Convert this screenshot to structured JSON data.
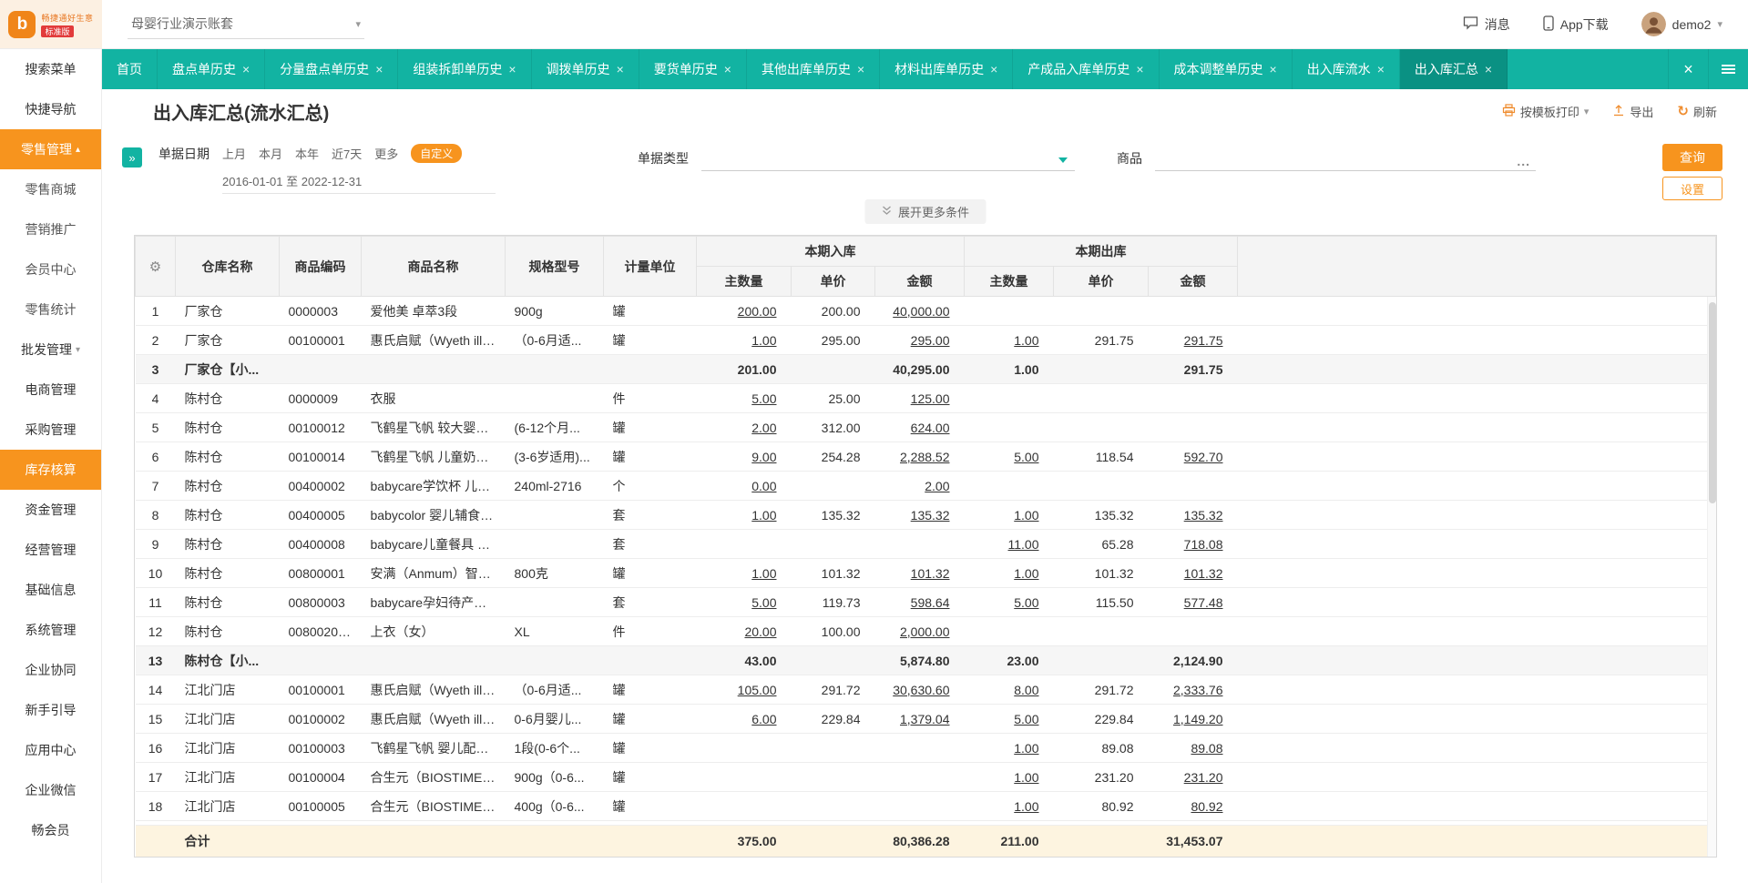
{
  "colors": {
    "brand_teal": "#12B3A2",
    "brand_teal_dark": "#0A9183",
    "accent_orange": "#F7941E",
    "subtotal_row_bg": "#F6F6F6",
    "total_row_bg": "#FDF4E0"
  },
  "topbar": {
    "logo_title": "畅捷通好生意",
    "logo_badge": "标准版",
    "account": "母婴行业演示账套",
    "messages_label": "消息",
    "app_download_label": "App下载",
    "username": "demo2"
  },
  "tabbar": {
    "tabs": [
      {
        "label": "首页",
        "closable": false,
        "active": false
      },
      {
        "label": "盘点单历史",
        "closable": true,
        "active": false
      },
      {
        "label": "分量盘点单历史",
        "closable": true,
        "active": false
      },
      {
        "label": "组装拆卸单历史",
        "closable": true,
        "active": false
      },
      {
        "label": "调拨单历史",
        "closable": true,
        "active": false
      },
      {
        "label": "要货单历史",
        "closable": true,
        "active": false
      },
      {
        "label": "其他出库单历史",
        "closable": true,
        "active": false
      },
      {
        "label": "材料出库单历史",
        "closable": true,
        "active": false
      },
      {
        "label": "产成品入库单历史",
        "closable": true,
        "active": false
      },
      {
        "label": "成本调整单历史",
        "closable": true,
        "active": false
      },
      {
        "label": "出入库流水",
        "closable": true,
        "active": false
      },
      {
        "label": "出入库汇总",
        "closable": true,
        "active": true
      }
    ]
  },
  "sidebar": {
    "items": [
      {
        "label": "搜索菜单",
        "style": "plain"
      },
      {
        "label": "快捷导航",
        "style": "plain"
      },
      {
        "label": "零售管理",
        "style": "orange",
        "arrow": "up"
      },
      {
        "label": "零售商城",
        "style": "child"
      },
      {
        "label": "营销推广",
        "style": "child"
      },
      {
        "label": "会员中心",
        "style": "child"
      },
      {
        "label": "零售统计",
        "style": "child"
      },
      {
        "label": "批发管理",
        "style": "plain",
        "arrow": "down"
      },
      {
        "label": "电商管理",
        "style": "plain"
      },
      {
        "label": "采购管理",
        "style": "plain"
      },
      {
        "label": "库存核算",
        "style": "orange"
      },
      {
        "label": "资金管理",
        "style": "plain"
      },
      {
        "label": "经营管理",
        "style": "plain"
      },
      {
        "label": "基础信息",
        "style": "plain"
      },
      {
        "label": "系统管理",
        "style": "plain"
      },
      {
        "label": "企业协同",
        "style": "plain"
      },
      {
        "label": "新手引导",
        "style": "plain"
      },
      {
        "label": "应用中心",
        "style": "plain"
      },
      {
        "label": "企业微信",
        "style": "plain"
      },
      {
        "label": "畅会员",
        "style": "plain"
      }
    ]
  },
  "page": {
    "title": "出入库汇总(流水汇总)",
    "actions": {
      "print": "按模板打印",
      "export": "导出",
      "refresh": "刷新"
    }
  },
  "filters": {
    "date_label": "单据日期",
    "date_quick": [
      "上月",
      "本月",
      "本年",
      "近7天",
      "更多"
    ],
    "date_custom": "自定义",
    "date_range": "2016-01-01 至 2022-12-31",
    "doc_type_label": "单据类型",
    "product_label": "商品",
    "product_picker": "...",
    "query": "查询",
    "settings": "设置",
    "expand_more": "展开更多条件"
  },
  "table": {
    "col_headers": {
      "warehouse": "仓库名称",
      "code": "商品编码",
      "name": "商品名称",
      "spec": "规格型号",
      "unit": "计量单位",
      "in_group": "本期入库",
      "out_group": "本期出库",
      "qty": "主数量",
      "price": "单价",
      "amount": "金额"
    },
    "rows": [
      {
        "idx": "1",
        "warehouse": "厂家仓",
        "code": "0000003",
        "name": "爱他美 卓萃3段",
        "spec": "900g",
        "unit": "罐",
        "in_qty": "200.00",
        "in_price": "200.00",
        "in_amt": "40,000.00",
        "out_qty": "",
        "out_price": "",
        "out_amt": "",
        "kind": "data"
      },
      {
        "idx": "2",
        "warehouse": "厂家仓",
        "code": "00100001",
        "name": "惠氏启赋（Wyeth illu...",
        "spec": "（0-6月适...",
        "unit": "罐",
        "in_qty": "1.00",
        "in_price": "295.00",
        "in_amt": "295.00",
        "out_qty": "1.00",
        "out_price": "291.75",
        "out_amt": "291.75",
        "kind": "data"
      },
      {
        "idx": "3",
        "warehouse": "厂家仓【小...",
        "code": "",
        "name": "",
        "spec": "",
        "unit": "",
        "in_qty": "201.00",
        "in_price": "",
        "in_amt": "40,295.00",
        "out_qty": "1.00",
        "out_price": "",
        "out_amt": "291.75",
        "kind": "subtotal"
      },
      {
        "idx": "4",
        "warehouse": "陈村仓",
        "code": "0000009",
        "name": "衣服",
        "spec": "",
        "unit": "件",
        "in_qty": "5.00",
        "in_price": "25.00",
        "in_amt": "125.00",
        "out_qty": "",
        "out_price": "",
        "out_amt": "",
        "kind": "data"
      },
      {
        "idx": "5",
        "warehouse": "陈村仓",
        "code": "00100012",
        "name": "飞鹤星飞帆 较大婴儿配...",
        "spec": "(6-12个月...",
        "unit": "罐",
        "in_qty": "2.00",
        "in_price": "312.00",
        "in_amt": "624.00",
        "out_qty": "",
        "out_price": "",
        "out_amt": "",
        "kind": "data"
      },
      {
        "idx": "6",
        "warehouse": "陈村仓",
        "code": "00100014",
        "name": "飞鹤星飞帆 儿童奶粉 4...",
        "spec": "(3-6岁适用)...",
        "unit": "罐",
        "in_qty": "9.00",
        "in_price": "254.28",
        "in_amt": "2,288.52",
        "out_qty": "5.00",
        "out_price": "118.54",
        "out_amt": "592.70",
        "kind": "data"
      },
      {
        "idx": "7",
        "warehouse": "陈村仓",
        "code": "00400002",
        "name": "babycare学饮杯 儿童...",
        "spec": "240ml-2716",
        "unit": "个",
        "in_qty": "0.00",
        "in_price": "",
        "in_amt": "2.00",
        "out_qty": "",
        "out_price": "",
        "out_amt": "",
        "kind": "data"
      },
      {
        "idx": "8",
        "warehouse": "陈村仓",
        "code": "00400005",
        "name": "babycolor 婴儿辅食机...",
        "spec": "",
        "unit": "套",
        "in_qty": "1.00",
        "in_price": "135.32",
        "in_amt": "135.32",
        "out_qty": "1.00",
        "out_price": "135.32",
        "out_amt": "135.32",
        "kind": "data"
      },
      {
        "idx": "9",
        "warehouse": "陈村仓",
        "code": "00400008",
        "name": "babycare儿童餐具 婴...",
        "spec": "",
        "unit": "套",
        "in_qty": "",
        "in_price": "",
        "in_amt": "",
        "out_qty": "11.00",
        "out_price": "65.28",
        "out_amt": "718.08",
        "kind": "data"
      },
      {
        "idx": "10",
        "warehouse": "陈村仓",
        "code": "00800001",
        "name": "安满（Anmum）智孕...",
        "spec": "800克",
        "unit": "罐",
        "in_qty": "1.00",
        "in_price": "101.32",
        "in_amt": "101.32",
        "out_qty": "1.00",
        "out_price": "101.32",
        "out_amt": "101.32",
        "kind": "data"
      },
      {
        "idx": "11",
        "warehouse": "陈村仓",
        "code": "00800003",
        "name": "babycare孕妇待产包...",
        "spec": "",
        "unit": "套",
        "in_qty": "5.00",
        "in_price": "119.73",
        "in_amt": "598.64",
        "out_qty": "5.00",
        "out_price": "115.50",
        "out_amt": "577.48",
        "kind": "data"
      },
      {
        "idx": "12",
        "warehouse": "陈村仓",
        "code": "008002000...",
        "name": "上衣（女）",
        "spec": "XL",
        "unit": "件",
        "in_qty": "20.00",
        "in_price": "100.00",
        "in_amt": "2,000.00",
        "out_qty": "",
        "out_price": "",
        "out_amt": "",
        "kind": "data"
      },
      {
        "idx": "13",
        "warehouse": "陈村仓【小...",
        "code": "",
        "name": "",
        "spec": "",
        "unit": "",
        "in_qty": "43.00",
        "in_price": "",
        "in_amt": "5,874.80",
        "out_qty": "23.00",
        "out_price": "",
        "out_amt": "2,124.90",
        "kind": "subtotal"
      },
      {
        "idx": "14",
        "warehouse": "江北门店",
        "code": "00100001",
        "name": "惠氏启赋（Wyeth illu...",
        "spec": "（0-6月适...",
        "unit": "罐",
        "in_qty": "105.00",
        "in_price": "291.72",
        "in_amt": "30,630.60",
        "out_qty": "8.00",
        "out_price": "291.72",
        "out_amt": "2,333.76",
        "kind": "data"
      },
      {
        "idx": "15",
        "warehouse": "江北门店",
        "code": "00100002",
        "name": "惠氏启赋（Wyeth illu...",
        "spec": "0-6月婴儿...",
        "unit": "罐",
        "in_qty": "6.00",
        "in_price": "229.84",
        "in_amt": "1,379.04",
        "out_qty": "5.00",
        "out_price": "229.84",
        "out_amt": "1,149.20",
        "kind": "data"
      },
      {
        "idx": "16",
        "warehouse": "江北门店",
        "code": "00100003",
        "name": "飞鹤星飞帆 婴儿配方奶...",
        "spec": "1段(0-6个...",
        "unit": "罐",
        "in_qty": "",
        "in_price": "",
        "in_amt": "",
        "out_qty": "1.00",
        "out_price": "89.08",
        "out_amt": "89.08",
        "kind": "data"
      },
      {
        "idx": "17",
        "warehouse": "江北门店",
        "code": "00100004",
        "name": "合生元（BIOSTIME）...",
        "spec": "900g（0-6...",
        "unit": "罐",
        "in_qty": "",
        "in_price": "",
        "in_amt": "",
        "out_qty": "1.00",
        "out_price": "231.20",
        "out_amt": "231.20",
        "kind": "data"
      },
      {
        "idx": "18",
        "warehouse": "江北门店",
        "code": "00100005",
        "name": "合生元（BIOSTIME）...",
        "spec": "400g（0-6...",
        "unit": "罐",
        "in_qty": "",
        "in_price": "",
        "in_amt": "",
        "out_qty": "1.00",
        "out_price": "80.92",
        "out_amt": "80.92",
        "kind": "data"
      }
    ],
    "total": {
      "label": "合计",
      "in_qty": "375.00",
      "in_amt": "80,386.28",
      "out_qty": "211.00",
      "out_amt": "31,453.07"
    }
  }
}
